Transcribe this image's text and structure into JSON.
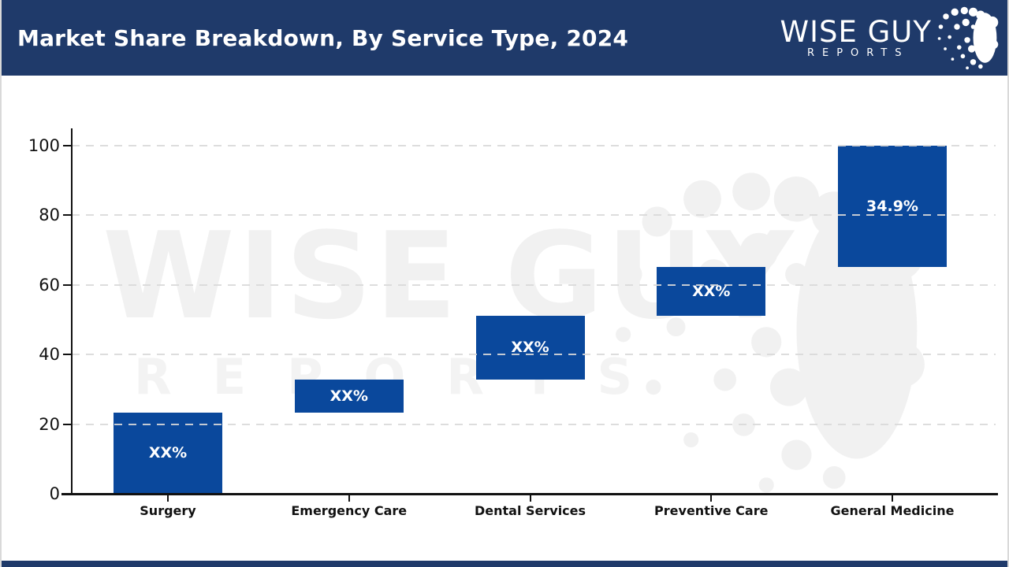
{
  "header": {
    "title": "Market Share Breakdown, By Service Type, 2024",
    "logo": {
      "wordmark": "WISE GUY",
      "sub": "REPORTS",
      "icon": "dotted-head-profile"
    }
  },
  "watermark": {
    "wordmark": "WISE GUY",
    "sub": "REPORTS",
    "icon": "dotted-head-profile"
  },
  "chart_data": {
    "type": "bar",
    "subtype": "floating-waterfall",
    "title": "Market Share Breakdown, By Service Type, 2024",
    "categories": [
      "Surgery",
      "Emergency Care",
      "Dental Services",
      "Preventive Care",
      "General Medicine"
    ],
    "series": [
      {
        "name": "Market share (%)",
        "segments": [
          {
            "start": 0,
            "end": 23.3,
            "label": "XX%"
          },
          {
            "start": 23.3,
            "end": 32.8,
            "label": "XX%"
          },
          {
            "start": 32.8,
            "end": 51.2,
            "label": "XX%"
          },
          {
            "start": 51.2,
            "end": 65.1,
            "label": "XX%"
          },
          {
            "start": 65.1,
            "end": 100,
            "label": "34.9%"
          }
        ]
      }
    ],
    "xlabel": "",
    "ylabel": "",
    "ylim": [
      0,
      100
    ],
    "yticks": [
      0,
      20,
      40,
      60,
      80,
      100
    ],
    "grid": "horizontal-dashed, drawn over bars",
    "legend": "none"
  },
  "colors": {
    "header_bg": "#1f3a6a",
    "footer_bg": "#1f3a6a",
    "bar": "#0a489c",
    "bar_label": "#ffffff",
    "grid": "#d9d9d9",
    "axis": "#111111",
    "tick_label": "#111111",
    "watermark": "#f1f1f1",
    "background": "#ffffff",
    "frame_border": "#d9d9d9"
  }
}
